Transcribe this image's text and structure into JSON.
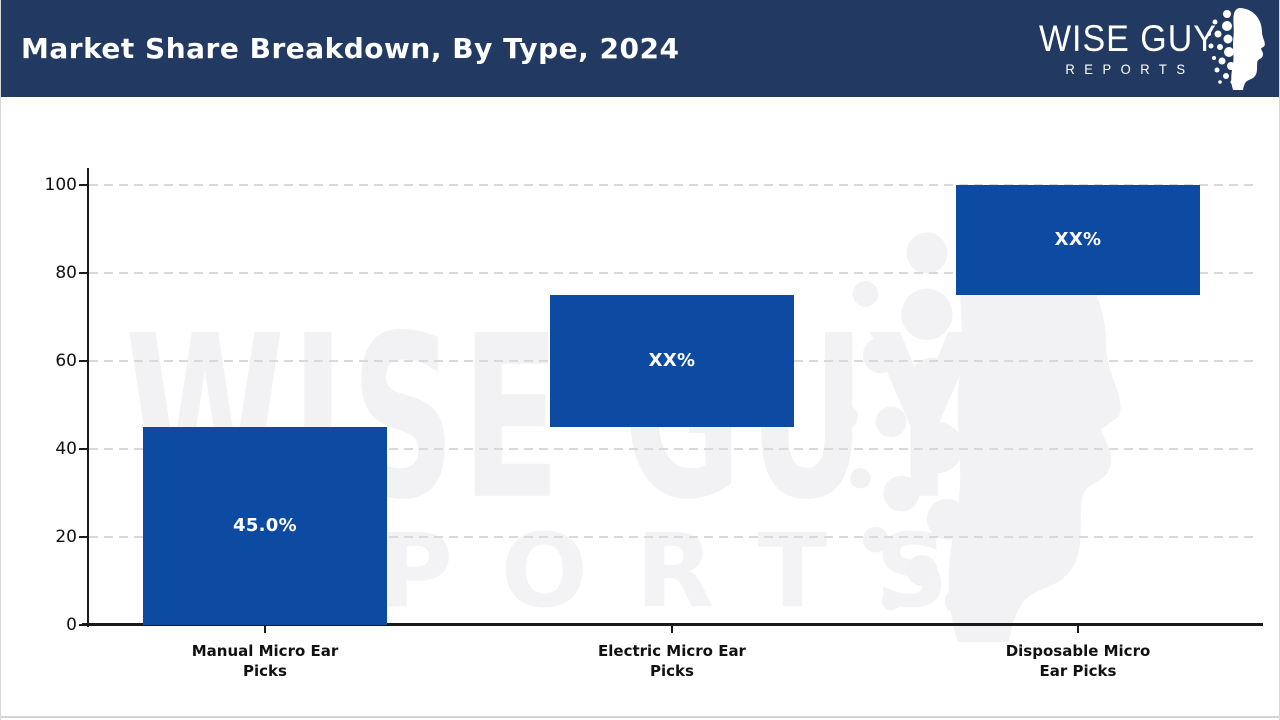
{
  "header": {
    "title": "Market Share Breakdown, By Type, 2024",
    "logo": {
      "wordmark": "WISE GUY",
      "subtitle": "REPORTS"
    }
  },
  "watermark": {
    "line1": "WISE GUY",
    "line2": "REPORTS"
  },
  "colors": {
    "header_bg": "#223a62",
    "bar": "#0d4ba3",
    "bar_label": "#ffffff",
    "axis": "#1a1a1a",
    "gridline": "#d9d9d9",
    "watermark": "#f2f2f4"
  },
  "chart_data": {
    "type": "bar",
    "subtype": "waterfall-segments",
    "title": "Market Share Breakdown, By Type, 2024",
    "categories": [
      [
        "Manual Micro Ear",
        "Picks"
      ],
      [
        "Electric Micro Ear",
        "Picks"
      ],
      [
        "Disposable Micro",
        "Ear Picks"
      ]
    ],
    "series": [
      {
        "name": "Market share (%)",
        "segments": [
          {
            "start": 0,
            "end": 45,
            "label": "45.0%"
          },
          {
            "start": 45,
            "end": 75,
            "label": "XX%"
          },
          {
            "start": 75,
            "end": 100,
            "label": "XX%"
          }
        ]
      }
    ],
    "yticks": [
      0,
      20,
      40,
      60,
      80,
      100
    ],
    "ylim": [
      0,
      103.8
    ],
    "xlabel": "",
    "ylabel": "",
    "grid": true,
    "gridline_style": "dashed",
    "legend": "none"
  }
}
